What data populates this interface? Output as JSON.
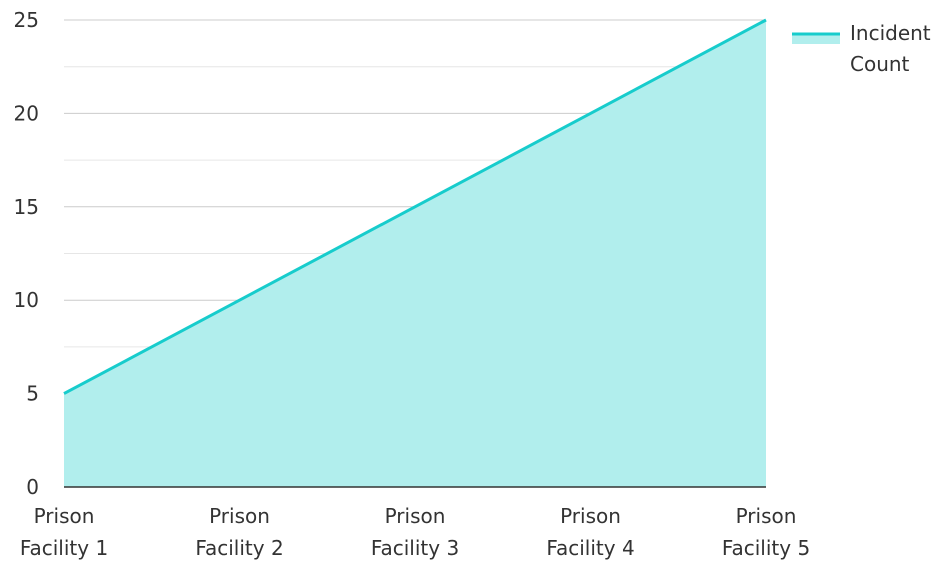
{
  "chart_data": {
    "type": "area",
    "categories": [
      "Prison Facility 1",
      "Prison Facility 2",
      "Prison Facility 3",
      "Prison Facility 4",
      "Prison Facility 5"
    ],
    "category_lines": [
      [
        "Prison",
        "Facility 1"
      ],
      [
        "Prison",
        "Facility 2"
      ],
      [
        "Prison",
        "Facility 3"
      ],
      [
        "Prison",
        "Facility 4"
      ],
      [
        "Prison",
        "Facility 5"
      ]
    ],
    "series": [
      {
        "name": "Incident Count",
        "name_lines": [
          "Incident",
          "Count"
        ],
        "values": [
          5,
          10,
          15,
          20,
          25
        ],
        "line_color": "#17cccc",
        "fill_color": "#b1eeed"
      }
    ],
    "ylim": [
      0,
      25
    ],
    "yticks": [
      0,
      5,
      10,
      15,
      20,
      25
    ],
    "title": "",
    "xlabel": "",
    "ylabel": "",
    "grid": true,
    "legend_position": "top-right"
  }
}
